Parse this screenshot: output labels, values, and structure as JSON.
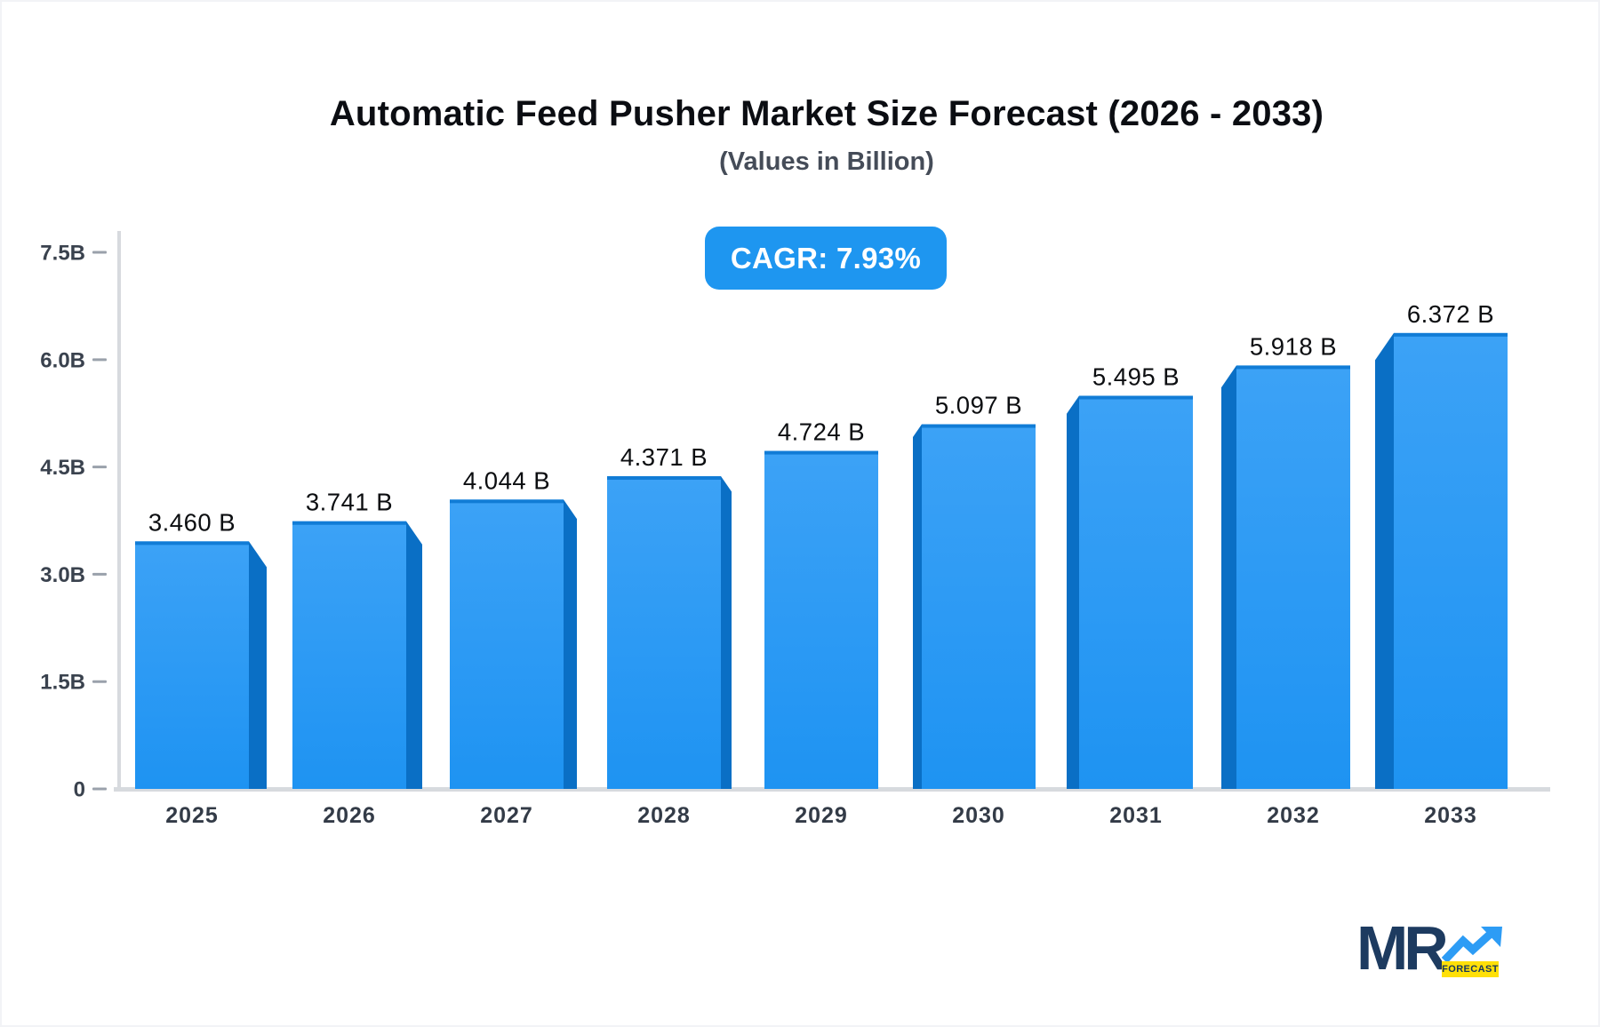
{
  "header": {
    "title": "Automatic Feed Pusher Market Size Forecast (2026 - 2033)",
    "subtitle": "(Values in Billion)",
    "cagr_badge": "CAGR: 7.93%"
  },
  "logo": {
    "text": "MR",
    "sub_text": "FORECAST"
  },
  "colors": {
    "accent_blue": "#1e96f0",
    "bar_face_top": "#3ca2f6",
    "bar_face_bottom": "#1e93f2",
    "bar_side": "#0a6fc5",
    "bar_top_edge": "#117cd6",
    "axis_line": "#d7dade",
    "tick_dash": "#9aa1ab",
    "axis_label": "#3a424e",
    "category_label": "#333b47",
    "value_label": "#0c0e11",
    "logo_navy": "#1d3b60",
    "logo_yellow": "#ffe008",
    "logo_arrow_blue": "#2d9cf5"
  },
  "chart_data": {
    "type": "bar",
    "title": "Automatic Feed Pusher Market Size Forecast (2026 - 2033)",
    "subtitle": "(Values in Billion)",
    "annotation": "CAGR: 7.93%",
    "categories": [
      "2025",
      "2026",
      "2027",
      "2028",
      "2029",
      "2030",
      "2031",
      "2032",
      "2033"
    ],
    "values": [
      3.46,
      3.741,
      4.044,
      4.371,
      4.724,
      5.097,
      5.495,
      5.918,
      6.372
    ],
    "value_labels": [
      "3.460 B",
      "3.741 B",
      "4.044 B",
      "4.371 B",
      "4.724 B",
      "5.097 B",
      "5.495 B",
      "5.918 B",
      "6.372 B"
    ],
    "unit": "Billion",
    "xlabel": "",
    "ylabel": "",
    "ylim": [
      0,
      7.5
    ],
    "y_tick_values": [
      0,
      1.5,
      3.0,
      4.5,
      6.0,
      7.5
    ],
    "y_tick_labels": [
      "0",
      "1.5B",
      "3.0B",
      "4.5B",
      "6.0B",
      "7.5B"
    ],
    "grid": false,
    "legend_position": "none",
    "bar_style": "3d-extruded"
  }
}
